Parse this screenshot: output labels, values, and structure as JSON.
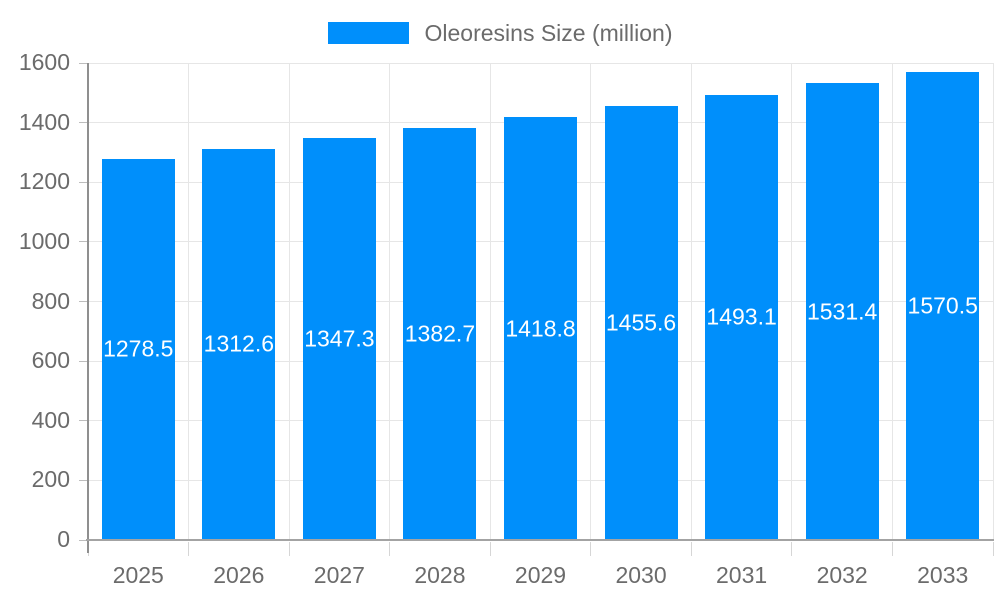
{
  "chart_data": {
    "type": "bar",
    "title": "",
    "legend": "Oleoresins Size (million)",
    "legend_position": "top-center",
    "categories": [
      "2025",
      "2026",
      "2027",
      "2028",
      "2029",
      "2030",
      "2031",
      "2032",
      "2033"
    ],
    "series": [
      {
        "name": "Oleoresins Size (million)",
        "values": [
          1278.5,
          1312.6,
          1347.3,
          1382.7,
          1418.8,
          1455.6,
          1493.1,
          1531.4,
          1570.5
        ]
      }
    ],
    "data_labels": [
      "1278.5",
      "1312.6",
      "1347.3",
      "1382.7",
      "1418.8",
      "1455.6",
      "1493.1",
      "1531.4",
      "1570.5"
    ],
    "xlabel": "",
    "ylabel": "",
    "ylim": [
      0,
      1600
    ],
    "yticks": [
      0,
      200,
      400,
      600,
      800,
      1000,
      1200,
      1400,
      1600
    ],
    "grid": "horizontal and vertical",
    "colors": {
      "bar": "#008FFB",
      "bar_label_text": "#ffffff",
      "axis_text": "#6b6b6b",
      "gridline": "#e6e6e6",
      "axis_line": "#8f8f8f"
    }
  }
}
